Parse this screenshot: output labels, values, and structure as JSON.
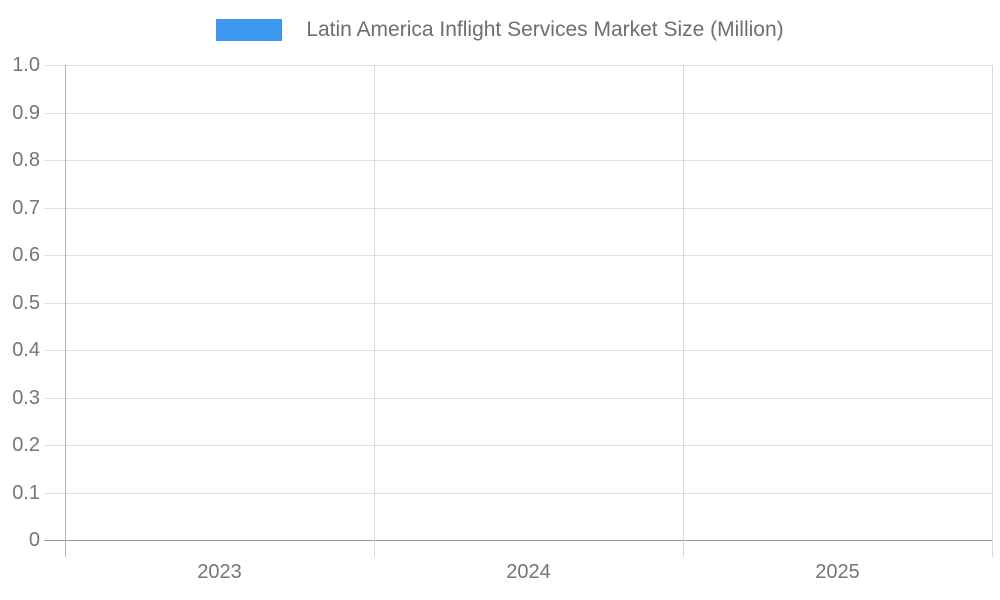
{
  "legend": {
    "label": "Latin America Inflight Services Market Size (Million)"
  },
  "chart_data": {
    "type": "bar",
    "title": "Latin America Inflight Services Market Size (Million)",
    "categories": [
      "2023",
      "2024",
      "2025"
    ],
    "series": [
      {
        "name": "Latin America Inflight Services Market Size (Million)",
        "values": [
          null,
          null,
          null
        ]
      }
    ],
    "xlabel": "",
    "ylabel": "",
    "ylim": [
      0,
      1
    ],
    "ytick_step": 0.1,
    "ytick_labels": [
      "0",
      "0.1",
      "0.2",
      "0.3",
      "0.4",
      "0.5",
      "0.6",
      "0.7",
      "0.8",
      "0.9",
      "1.0"
    ],
    "grid": true,
    "legend_position": "top"
  },
  "colors": {
    "accent": "#3d97ee",
    "title_text": "#6e6e6e",
    "tick_text": "#757575",
    "grid_horizontal": "#e0e0e0",
    "grid_vertical": "#d9d9d9",
    "y_axis_line": "#b5b5b5",
    "x_axis_line": "#999999"
  }
}
